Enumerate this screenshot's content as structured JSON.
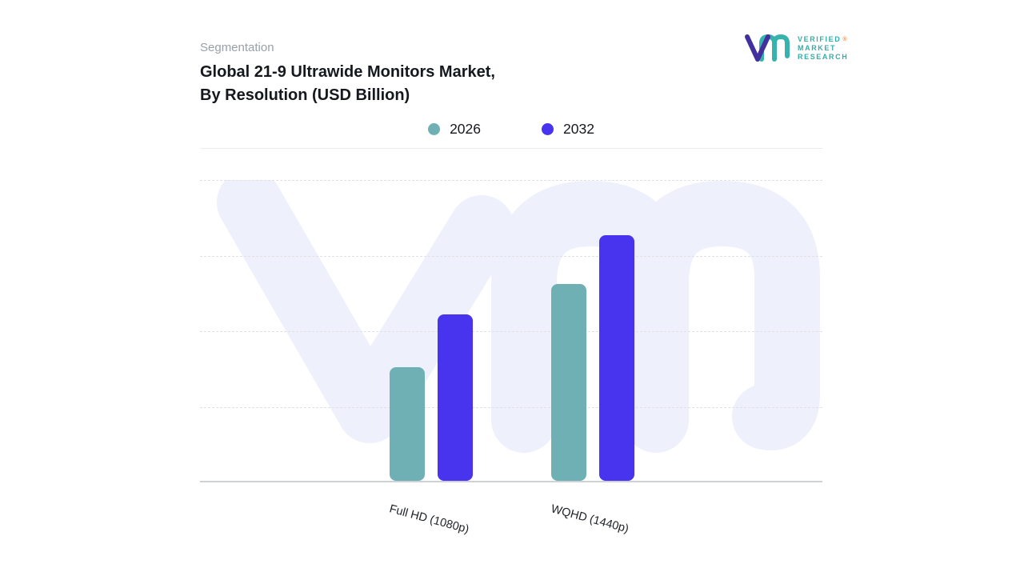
{
  "header": {
    "eyebrow": "Segmentation",
    "title_line1": "Global 21-9 Ultrawide Monitors Market,",
    "title_line2": "By Resolution (USD Billion)"
  },
  "brand": {
    "name_lines": [
      "VERIFIED",
      "MARKET",
      "RESEARCH"
    ],
    "registered_mark": "®"
  },
  "colors": {
    "series_2026": "#6fb0b5",
    "series_2032": "#4834ee",
    "watermark": "#eef1fb",
    "brand_purple": "#43309e",
    "brand_teal": "#36b3ad"
  },
  "chart_data": {
    "type": "bar",
    "title": "Global 21-9 Ultrawide Monitors Market, By Resolution (USD Billion)",
    "ylabel": "USD Billion",
    "categories": [
      "Full HD (1080p)",
      "WQHD (1440p)"
    ],
    "series": [
      {
        "name": "2026",
        "color": "#6fb0b5",
        "values": [
          1.5,
          2.6
        ]
      },
      {
        "name": "2032",
        "color": "#4834ee",
        "values": [
          2.2,
          3.25
        ]
      }
    ],
    "ylim": [
      0,
      4
    ],
    "y_axis_labels_visible": false,
    "grid": "horizontal-dashed",
    "legend_position": "top-center"
  }
}
